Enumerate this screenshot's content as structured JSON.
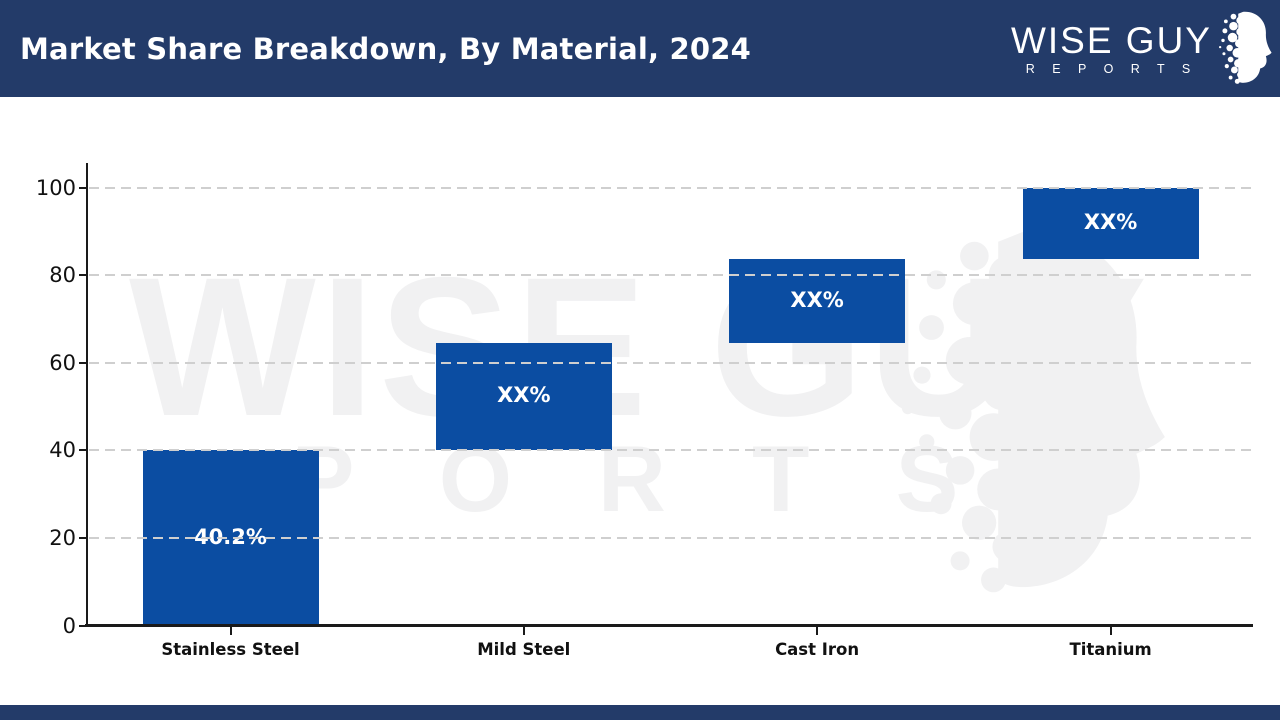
{
  "header": {
    "title": "Market Share Breakdown, By Material, 2024",
    "logo": {
      "line1": "WISE GUY",
      "line2": "R E P O R T S"
    }
  },
  "watermark": {
    "line1": "WISE GUY",
    "line2": "P O R T S"
  },
  "chart_data": {
    "type": "bar",
    "subtype": "waterfall",
    "title": "Market Share Breakdown, By Material, 2024",
    "categories": [
      "Stainless Steel",
      "Mild Steel",
      "Cast Iron",
      "Titanium"
    ],
    "segments": [
      {
        "category": "Stainless Steel",
        "start": 0,
        "end": 40.2,
        "label": "40.2%"
      },
      {
        "category": "Mild Steel",
        "start": 40.2,
        "end": 64.5,
        "label": "XX%"
      },
      {
        "category": "Cast Iron",
        "start": 64.5,
        "end": 83.8,
        "label": "XX%"
      },
      {
        "category": "Titanium",
        "start": 83.8,
        "end": 100,
        "label": "XX%"
      }
    ],
    "ylim": [
      0,
      100
    ],
    "yticks": [
      0,
      20,
      40,
      60,
      80,
      100
    ],
    "xlabel": "",
    "ylabel": "",
    "legend": "none",
    "grid": "horizontal dashed gridlines, drawn over bars",
    "bar_color": "#0B4DA2",
    "bar_label_color": "#FFFFFF"
  },
  "colors": {
    "header_navy": "#233B69",
    "bar_blue": "#0B4DA2",
    "watermark_gray": "#F1F1F2",
    "gridline_gray": "#CFCFCF",
    "axis_black": "#1A1A1A"
  }
}
